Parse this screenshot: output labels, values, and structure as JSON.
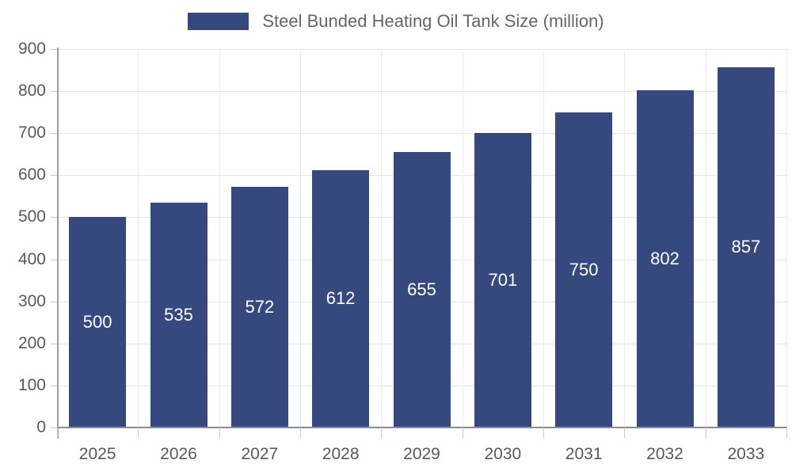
{
  "chart_data": {
    "type": "bar",
    "categories": [
      "2025",
      "2026",
      "2027",
      "2028",
      "2029",
      "2030",
      "2031",
      "2032",
      "2033"
    ],
    "series": [
      {
        "name": "Steel Bunded Heating Oil Tank Size (million)",
        "values": [
          500,
          535,
          572,
          612,
          655,
          701,
          750,
          802,
          857
        ]
      }
    ],
    "yticks": [
      0,
      100,
      200,
      300,
      400,
      500,
      600,
      700,
      800,
      900
    ],
    "ylim": [
      0,
      900
    ],
    "xlabel": "",
    "ylabel": "",
    "grid": true,
    "legend_position": "top",
    "bar_color": "#36497f",
    "bar_label_color": "#ffffff",
    "axis_text_color": "#58595b",
    "legend_text_color": "#666666",
    "grid_color": "#e4e5e7"
  }
}
